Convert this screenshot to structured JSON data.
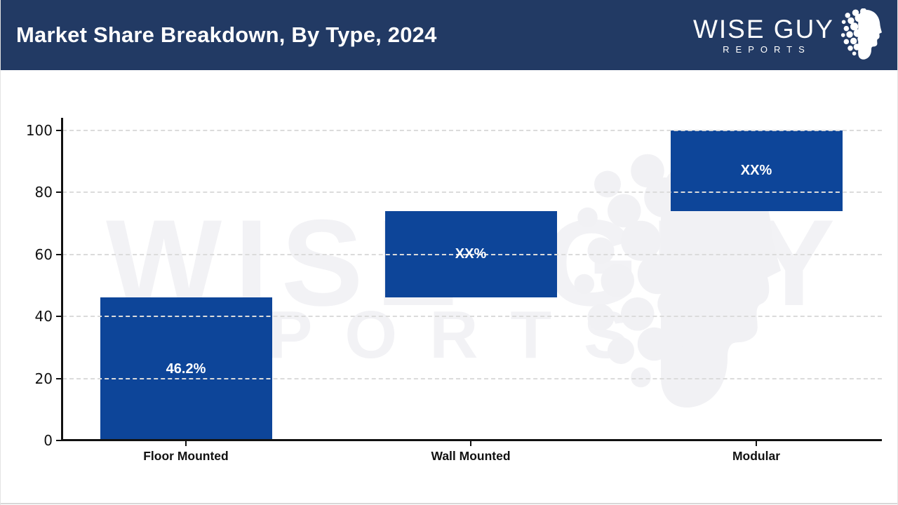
{
  "header": {
    "title": "Market Share Breakdown, By Type, 2024",
    "brand": {
      "name": "WISE GUY",
      "sub": "REPORTS"
    }
  },
  "watermark": {
    "line1": "WISE GUY",
    "line2": "REPORTS"
  },
  "colors": {
    "header_bg": "#223A64",
    "bar_fill": "#0D4599",
    "gridline": "#DBDBDB",
    "axis": "#111111",
    "watermark": "#F2F2F5",
    "bar_label_text": "#FFFFFF"
  },
  "chart_data": {
    "type": "waterfall",
    "title": "Market Share Breakdown, By Type, 2024",
    "categories": [
      "Floor Mounted",
      "Wall Mounted",
      "Modular"
    ],
    "bars": [
      {
        "category": "Floor Mounted",
        "start": 0,
        "end": 46.2,
        "label": "46.2%"
      },
      {
        "category": "Wall Mounted",
        "start": 46.2,
        "end": 74,
        "label": "XX%"
      },
      {
        "category": "Modular",
        "start": 74,
        "end": 100,
        "label": "XX%"
      }
    ],
    "ylim": [
      0,
      100
    ],
    "yticks": [
      0,
      20,
      40,
      60,
      80,
      100
    ],
    "grid": "horizontal-dashed",
    "legend": "none",
    "xlabel": "",
    "ylabel": ""
  }
}
